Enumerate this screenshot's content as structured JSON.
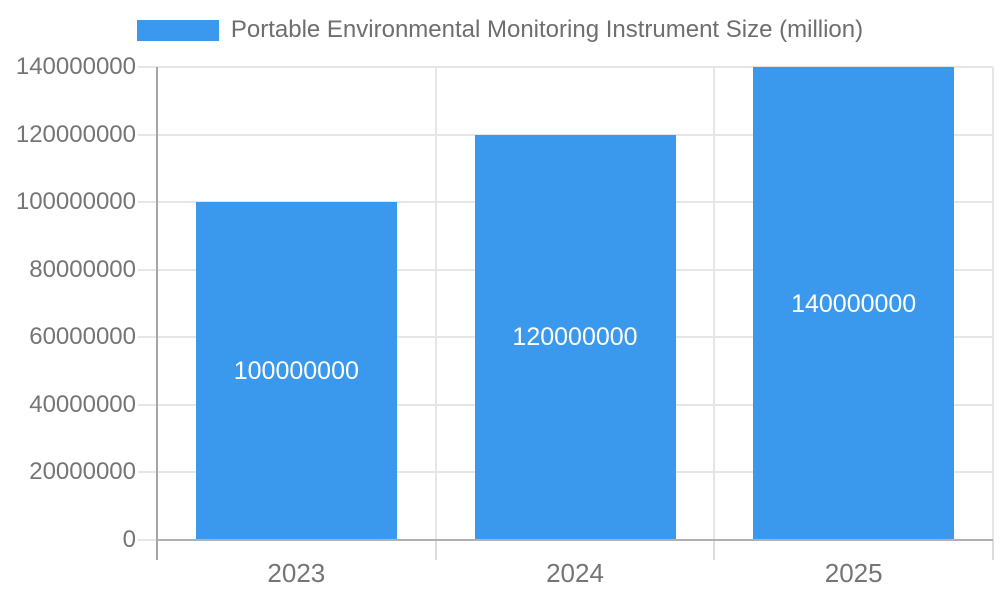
{
  "legend": {
    "label": "Portable Environmental Monitoring Instrument Size (million)"
  },
  "colors": {
    "bar": "#3a99ec",
    "bar_label": "#ffffff",
    "tick_text": "#757575",
    "legend_text": "#6e6e6e",
    "gridline": "#e6e6e6",
    "axis_line": "#a6a6a6"
  },
  "chart_data": {
    "type": "bar",
    "title": "",
    "categories": [
      "2023",
      "2024",
      "2025"
    ],
    "series": [
      {
        "name": "Portable Environmental Monitoring Instrument Size (million)",
        "values": [
          100000000,
          120000000,
          140000000
        ]
      }
    ],
    "bar_labels": [
      "100000000",
      "120000000",
      "140000000"
    ],
    "xlabel": "",
    "ylabel": "",
    "ylim": [
      0,
      140000000
    ],
    "ytick_step": 20000000,
    "ytick_labels": [
      "0",
      "20000000",
      "40000000",
      "60000000",
      "80000000",
      "100000000",
      "120000000",
      "140000000"
    ],
    "grid": true,
    "legend_position": "top"
  }
}
